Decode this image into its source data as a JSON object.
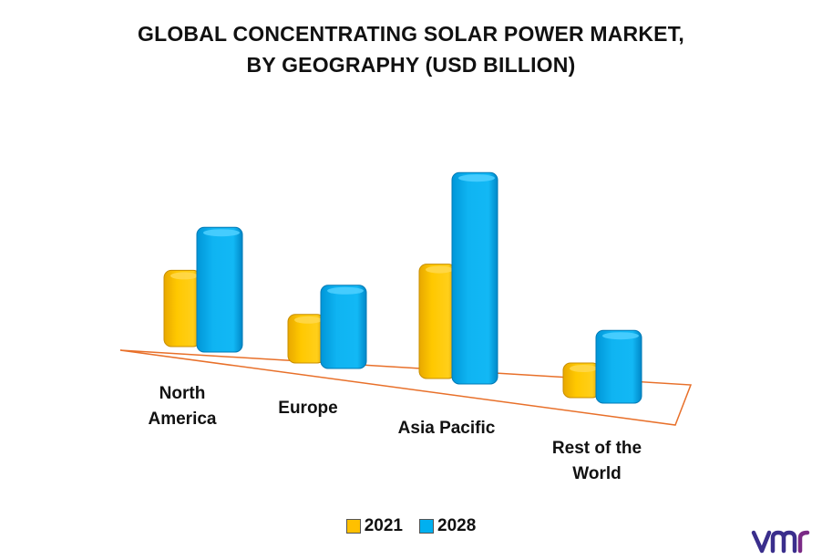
{
  "title_line1": "GLOBAL CONCENTRATING SOLAR POWER MARKET,",
  "title_line2": "BY GEOGRAPHY (USD BILLION)",
  "colors": {
    "series_2021": "#FFC000",
    "series_2028": "#00B0F0",
    "floor": "#E8702A"
  },
  "chart_data": {
    "type": "bar",
    "title": "GLOBAL CONCENTRATING SOLAR POWER MARKET, BY GEOGRAPHY (USD BILLION)",
    "categories": [
      "North America",
      "Europe",
      "Asia Pacific",
      "Rest of the World"
    ],
    "category_lines": [
      [
        "North",
        "America"
      ],
      [
        "Europe"
      ],
      [
        "Asia Pacific"
      ],
      [
        "Rest of the",
        "World"
      ]
    ],
    "series": [
      {
        "name": "2021",
        "values": [
          2.2,
          1.4,
          3.3,
          1.0
        ]
      },
      {
        "name": "2028",
        "values": [
          3.6,
          2.4,
          6.1,
          2.1
        ]
      }
    ],
    "legend_position": "bottom",
    "grid": false
  },
  "legend": [
    {
      "label": "2021"
    },
    {
      "label": "2028"
    }
  ],
  "logo_icon": "vmr-logo"
}
